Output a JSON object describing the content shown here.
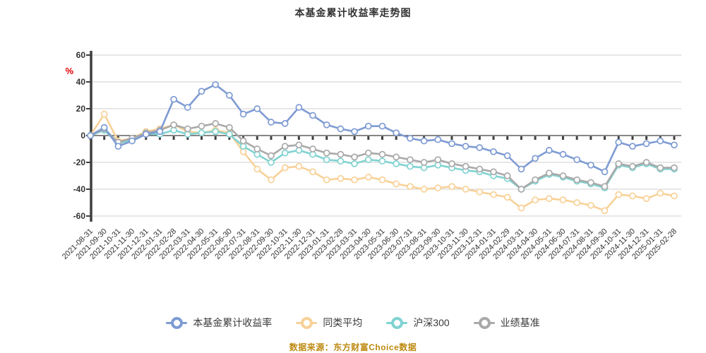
{
  "watermark": "数据来源：东方财富Choice数据",
  "chart_data": {
    "type": "line",
    "title": "本基金累计收益率走势图",
    "y_unit": "%",
    "y_unit_color": "#e60000",
    "ylim": [
      -60,
      60
    ],
    "y_ticks": [
      60,
      40,
      20,
      0,
      -20,
      -40,
      -60
    ],
    "grid": true,
    "legend_position": "bottom",
    "marker_style": "empty-circle",
    "x": [
      "2021-08-31",
      "2021-09-30",
      "2021-10-31",
      "2021-11-30",
      "2021-12-31",
      "2022-01-31",
      "2022-02-28",
      "2022-03-31",
      "2022-04-30",
      "2022-05-31",
      "2022-06-30",
      "2022-07-31",
      "2022-08-31",
      "2022-09-30",
      "2022-10-31",
      "2022-11-30",
      "2022-12-31",
      "2023-01-31",
      "2023-02-28",
      "2023-03-31",
      "2023-04-30",
      "2023-05-31",
      "2023-06-30",
      "2023-07-31",
      "2023-08-31",
      "2023-09-30",
      "2023-10-31",
      "2023-11-30",
      "2023-12-31",
      "2024-01-31",
      "2024-02-29",
      "2024-03-31",
      "2024-04-30",
      "2024-05-31",
      "2024-06-30",
      "2024-07-31",
      "2024-08-31",
      "2024-09-30",
      "2024-10-31",
      "2024-11-30",
      "2024-12-31",
      "2025-01-31",
      "2025-02-28"
    ],
    "series": [
      {
        "name": "本基金累计收益率",
        "color": "#7e9bd3",
        "values": [
          0,
          6,
          -8,
          -4,
          1,
          3,
          27,
          21,
          33,
          38,
          30,
          16,
          20,
          10,
          9,
          21,
          15,
          8,
          5,
          3,
          7,
          7,
          2,
          -2,
          -4,
          -3,
          -6,
          -8,
          -9,
          -12,
          -15,
          -25,
          -17,
          -11,
          -14,
          -18,
          -22,
          -27,
          -5,
          -8,
          -6,
          -4,
          -7
        ]
      },
      {
        "name": "同类平均",
        "color": "#f8d198",
        "values": [
          0,
          16,
          -4,
          -2,
          3,
          5,
          8,
          3,
          2,
          4,
          2,
          -12,
          -25,
          -33,
          -24,
          -23,
          -27,
          -33,
          -32,
          -33,
          -31,
          -33,
          -36,
          -38,
          -40,
          -39,
          -38,
          -40,
          -42,
          -44,
          -46,
          -54,
          -48,
          -47,
          -48,
          -50,
          -52,
          -56,
          -44,
          -45,
          -47,
          -43,
          -45
        ]
      },
      {
        "name": "沪深300",
        "color": "#80d3d1",
        "values": [
          0,
          4,
          -6,
          -3,
          1,
          1,
          4,
          1,
          2,
          3,
          1,
          -8,
          -14,
          -20,
          -13,
          -11,
          -14,
          -18,
          -19,
          -21,
          -18,
          -19,
          -21,
          -23,
          -24,
          -22,
          -24,
          -26,
          -27,
          -30,
          -32,
          -40,
          -34,
          -29,
          -31,
          -34,
          -36,
          -39,
          -22,
          -24,
          -21,
          -25,
          -25
        ]
      },
      {
        "name": "业绩基准",
        "color": "#a9a9a9",
        "values": [
          0,
          5,
          -5,
          -2,
          2,
          4,
          8,
          5,
          7,
          9,
          6,
          -4,
          -10,
          -15,
          -8,
          -7,
          -10,
          -13,
          -14,
          -16,
          -13,
          -14,
          -16,
          -18,
          -20,
          -18,
          -21,
          -23,
          -25,
          -27,
          -30,
          -40,
          -33,
          -28,
          -30,
          -33,
          -35,
          -38,
          -21,
          -23,
          -20,
          -24,
          -24
        ]
      }
    ],
    "colors": {
      "grid": "#cfcfcf",
      "axis": "#3f3f3f",
      "tick_text": "#333333",
      "watermark": "#be8b12"
    }
  }
}
